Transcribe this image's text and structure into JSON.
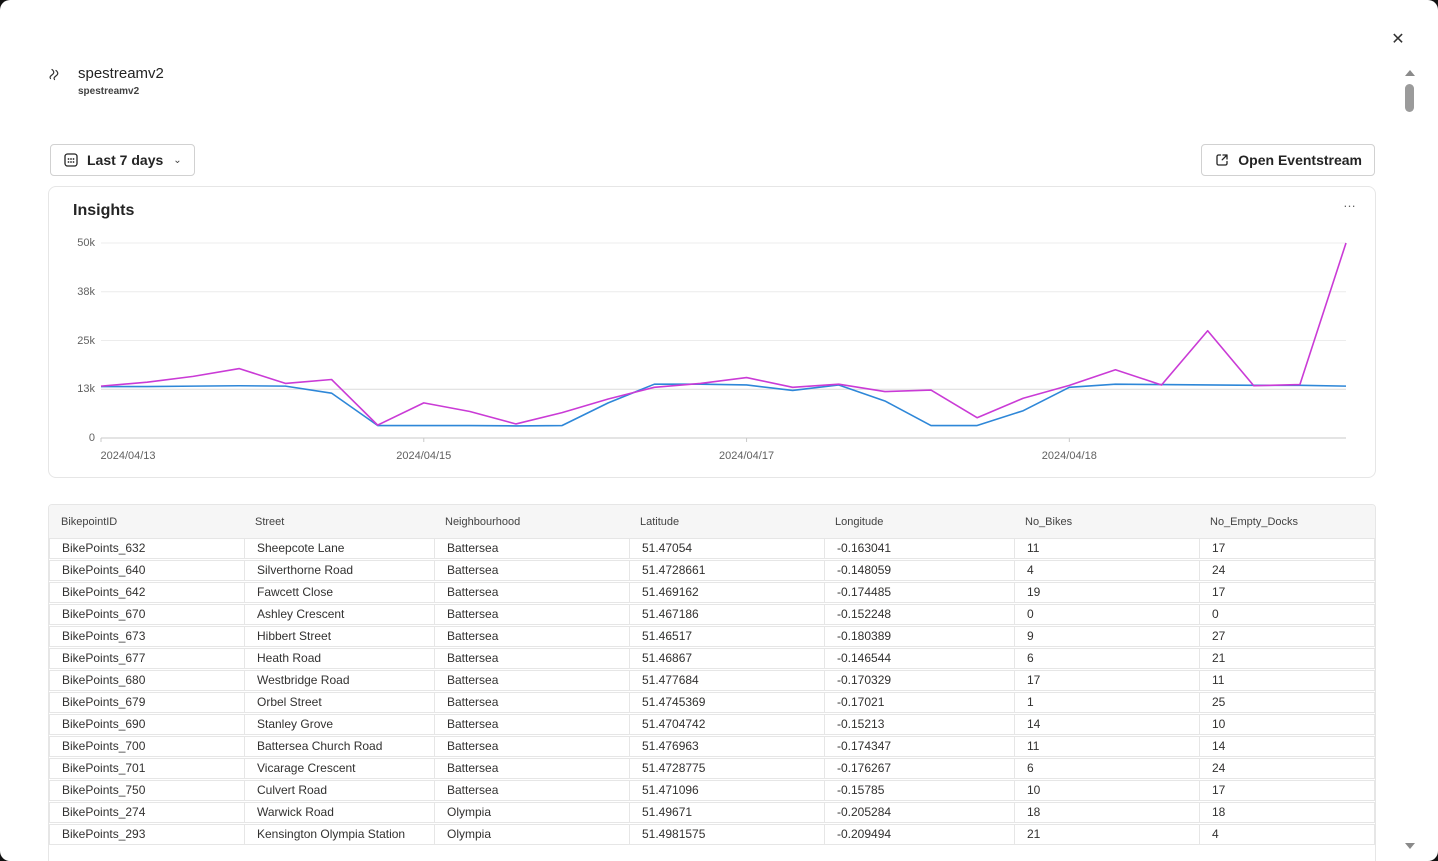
{
  "window": {
    "close_icon": "✕"
  },
  "header": {
    "title": "spestreamv2",
    "subtitle": "spestreamv2",
    "app_icon": "eventstream-icon"
  },
  "toolbar": {
    "time_range_label": "Last 7 days",
    "time_range_icon": "calendar-icon",
    "open_label": "Open Eventstream",
    "open_icon": "open-external-icon"
  },
  "insights": {
    "title": "Insights",
    "more_label": "…"
  },
  "chart_data": {
    "type": "line",
    "title": "Insights",
    "xlabel": "",
    "ylabel": "",
    "ylim": [
      0,
      50000
    ],
    "grid": true,
    "legend": "none",
    "values_unit": "events (thousands)",
    "y_tick_labels": [
      "0",
      "13k",
      "25k",
      "38k",
      "50k"
    ],
    "y_tick_values": [
      0,
      12.5,
      25,
      37.5,
      50
    ],
    "x_tick_labels": [
      "2024/04/13",
      "2024/04/15",
      "2024/04/17",
      "2024/04/18"
    ],
    "x_tick_indices": [
      0,
      7,
      14,
      21
    ],
    "series": [
      {
        "name": "blue",
        "color": "#2e87d8",
        "values": [
          13.2,
          13.2,
          13.3,
          13.4,
          13.3,
          11.5,
          3.2,
          3.2,
          3.2,
          3.1,
          3.2,
          9,
          13.8,
          13.8,
          13.6,
          12.2,
          13.6,
          9.5,
          3.2,
          3.2,
          7,
          13,
          13.8,
          13.7,
          13.6,
          13.5,
          13.5,
          13.3
        ]
      },
      {
        "name": "magenta",
        "color": "#ca3bd6",
        "values": [
          13.3,
          14.3,
          15.8,
          17.8,
          14,
          15,
          3.3,
          9,
          6.8,
          3.6,
          6.5,
          10,
          13,
          14,
          15.5,
          13,
          13.8,
          11.9,
          12.3,
          5.2,
          10.2,
          13.5,
          17.5,
          13.6,
          27.5,
          13.4,
          13.7,
          50
        ]
      }
    ]
  },
  "table": {
    "columns": [
      "BikepointID",
      "Street",
      "Neighbourhood",
      "Latitude",
      "Longitude",
      "No_Bikes",
      "No_Empty_Docks"
    ],
    "rows": [
      [
        "BikePoints_632",
        "Sheepcote Lane",
        "Battersea",
        "51.47054",
        "-0.163041",
        "11",
        "17"
      ],
      [
        "BikePoints_640",
        "Silverthorne Road",
        "Battersea",
        "51.4728661",
        "-0.148059",
        "4",
        "24"
      ],
      [
        "BikePoints_642",
        "Fawcett Close",
        "Battersea",
        "51.469162",
        "-0.174485",
        "19",
        "17"
      ],
      [
        "BikePoints_670",
        "Ashley Crescent",
        "Battersea",
        "51.467186",
        "-0.152248",
        "0",
        "0"
      ],
      [
        "BikePoints_673",
        "Hibbert Street",
        "Battersea",
        "51.46517",
        "-0.180389",
        "9",
        "27"
      ],
      [
        "BikePoints_677",
        "Heath Road",
        "Battersea",
        "51.46867",
        "-0.146544",
        "6",
        "21"
      ],
      [
        "BikePoints_680",
        "Westbridge Road",
        "Battersea",
        "51.477684",
        "-0.170329",
        "17",
        "11"
      ],
      [
        "BikePoints_679",
        "Orbel Street",
        "Battersea",
        "51.4745369",
        "-0.17021",
        "1",
        "25"
      ],
      [
        "BikePoints_690",
        "Stanley Grove",
        "Battersea",
        "51.4704742",
        "-0.15213",
        "14",
        "10"
      ],
      [
        "BikePoints_700",
        "Battersea Church Road",
        "Battersea",
        "51.476963",
        "-0.174347",
        "11",
        "14"
      ],
      [
        "BikePoints_701",
        "Vicarage Crescent",
        "Battersea",
        "51.4728775",
        "-0.176267",
        "6",
        "24"
      ],
      [
        "BikePoints_750",
        "Culvert Road",
        "Battersea",
        "51.471096",
        "-0.15785",
        "10",
        "17"
      ],
      [
        "BikePoints_274",
        "Warwick Road",
        "Olympia",
        "51.49671",
        "-0.205284",
        "18",
        "18"
      ],
      [
        "BikePoints_293",
        "Kensington Olympia Station",
        "Olympia",
        "51.4981575",
        "-0.209494",
        "21",
        "4"
      ]
    ]
  }
}
